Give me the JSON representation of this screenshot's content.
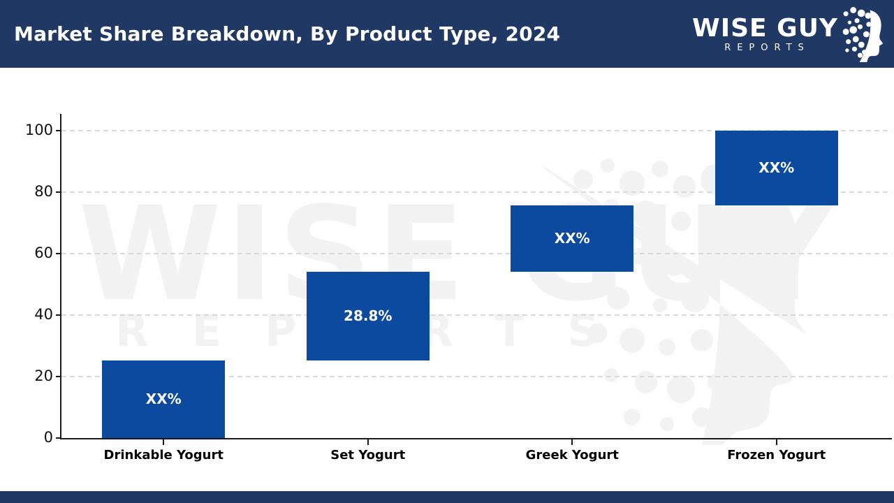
{
  "header": {
    "title": "Market Share Breakdown, By Product Type, 2024",
    "logo": {
      "line1": "WISE GUY",
      "line2": "REPORTS"
    }
  },
  "watermark": {
    "line1": "WISE GUY",
    "line2": "REPORTS"
  },
  "colors": {
    "header_navy": "#1f3864",
    "bar_blue": "#0b4a9e",
    "grid_gray": "#d9d9d9",
    "watermark_gray": "#f2f2f2"
  },
  "chart_data": {
    "type": "bar",
    "subtype": "waterfall",
    "title": "Market Share Breakdown, By Product Type, 2024",
    "categories": [
      "Drinkable Yogurt",
      "Set Yogurt",
      "Greek Yogurt",
      "Frozen Yogurt"
    ],
    "segments": [
      {
        "category": "Drinkable Yogurt",
        "start": 0,
        "end": 25.3,
        "value": 25.3,
        "label": "XX%"
      },
      {
        "category": "Set Yogurt",
        "start": 25.3,
        "end": 54.1,
        "value": 28.8,
        "label": "28.8%"
      },
      {
        "category": "Greek Yogurt",
        "start": 54.1,
        "end": 75.8,
        "value": 21.7,
        "label": "XX%"
      },
      {
        "category": "Frozen Yogurt",
        "start": 75.8,
        "end": 100,
        "value": 24.2,
        "label": "XX%"
      }
    ],
    "xlabel": "",
    "ylabel": "",
    "yticks": [
      0,
      20,
      40,
      60,
      80,
      100
    ],
    "ylim": [
      0,
      105.5
    ],
    "grid": "horizontal-dashed",
    "legend": "none",
    "bar_label_color": "#ffffff"
  }
}
